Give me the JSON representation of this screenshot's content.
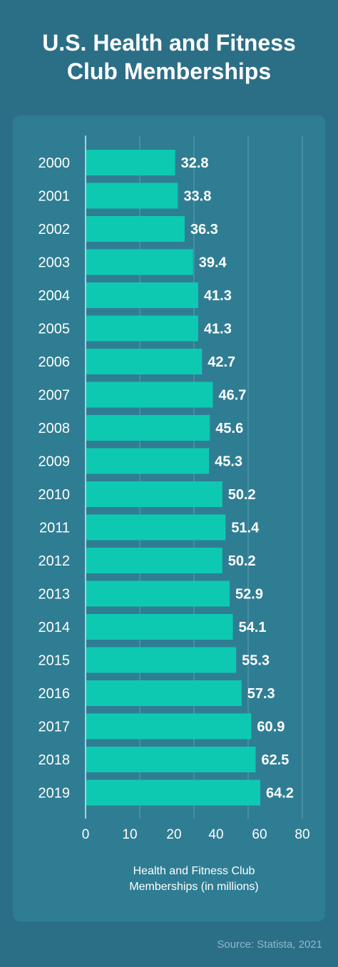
{
  "title": "U.S. Health and Fitness Club Memberships",
  "source": "Source: Statista, 2021",
  "colors": {
    "background": "#2b6f86",
    "panel": "#2f7d93",
    "bar": "#0ec9b2",
    "grid": "#5f9db0",
    "text": "#ffffff"
  },
  "chart_data": {
    "type": "bar",
    "orientation": "horizontal",
    "title": "U.S. Health and Fitness Club Memberships",
    "xlabel": "Health and Fitness Club Memberships (in millions)",
    "ylabel": "",
    "xlim": [
      0,
      80
    ],
    "xticks": [
      "0",
      "10",
      "20",
      "40",
      "60",
      "80"
    ],
    "grid": true,
    "categories": [
      "2000",
      "2001",
      "2002",
      "2003",
      "2004",
      "2005",
      "2006",
      "2007",
      "2008",
      "2009",
      "2010",
      "2011",
      "2012",
      "2013",
      "2014",
      "2015",
      "2016",
      "2017",
      "2018",
      "2019"
    ],
    "values": [
      32.8,
      33.8,
      36.3,
      39.4,
      41.3,
      41.3,
      42.7,
      46.7,
      45.6,
      45.3,
      50.2,
      51.4,
      50.2,
      52.9,
      54.1,
      55.3,
      57.3,
      60.9,
      62.5,
      64.2
    ],
    "data_labels": [
      "32.8",
      "33.8",
      "36.3",
      "39.4",
      "41.3",
      "41.3",
      "42.7",
      "46.7",
      "45.6",
      "45.3",
      "50.2",
      "51.4",
      "50.2",
      "52.9",
      "54.1",
      "55.3",
      "57.3",
      "60.9",
      "62.5",
      "64.2"
    ]
  }
}
